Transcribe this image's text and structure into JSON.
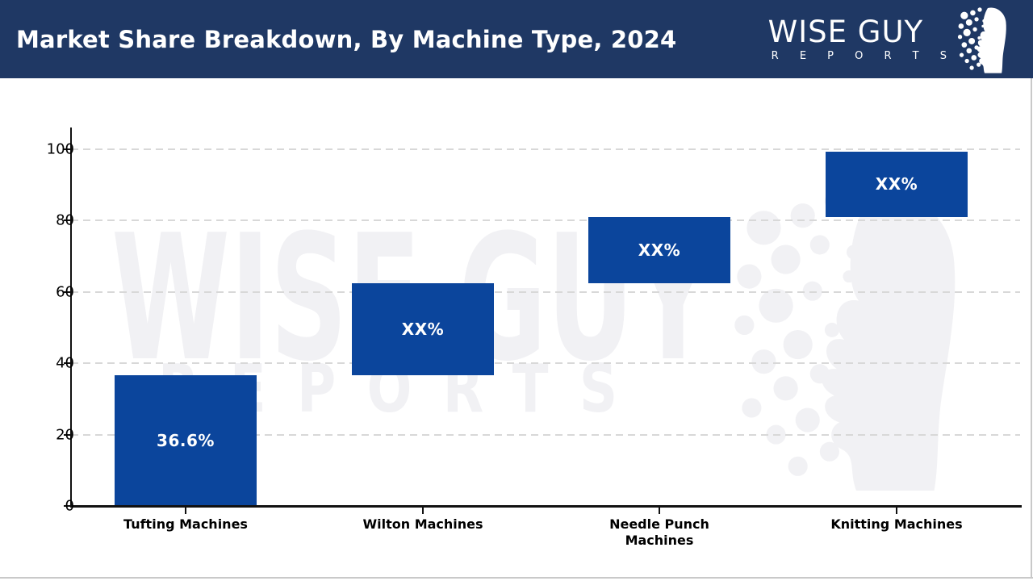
{
  "header": {
    "title": "Market Share Breakdown, By Machine Type, 2024",
    "bg_color": "#1F3864",
    "logo": {
      "line1": "WISE GUY",
      "line2": "R E P O R T S"
    }
  },
  "watermark": {
    "line1": "WISE GUY",
    "line2": "REPORTS"
  },
  "chart_data": {
    "type": "bar",
    "subtype": "waterfall",
    "title": "Market Share Breakdown, By Machine Type, 2024",
    "xlabel": "",
    "ylabel": "",
    "ylim": [
      0,
      100
    ],
    "yticks": [
      0,
      20,
      40,
      60,
      80,
      100
    ],
    "grid": true,
    "categories": [
      "Tufting Machines",
      "Wilton Machines",
      "Needle Punch Machines",
      "Knitting Machines"
    ],
    "series": [
      {
        "name": "Market Share",
        "segments": [
          {
            "start": 0,
            "end": 36.6,
            "label": "36.6%"
          },
          {
            "start": 36.6,
            "end": 62.4,
            "label": "XX%"
          },
          {
            "start": 62.4,
            "end": 81.1,
            "label": "XX%"
          },
          {
            "start": 81.1,
            "end": 99.4,
            "label": "XX%"
          }
        ]
      }
    ],
    "bar_color": "#0B459C",
    "label_color": "#ffffff",
    "grid_color": "#d8d8d8",
    "axis_color": "#111111"
  }
}
